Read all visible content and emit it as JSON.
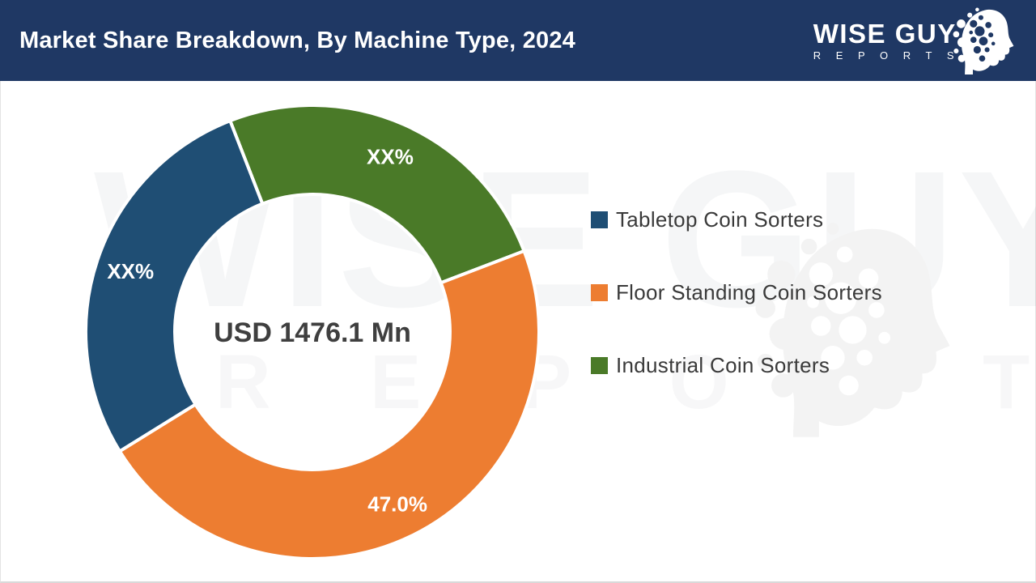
{
  "header": {
    "title": "Market Share Breakdown, By Machine Type, 2024",
    "logo": {
      "line1": "WISE GUY",
      "line2": "R E P O R T S"
    }
  },
  "watermark": {
    "line1": "WISE GUY",
    "line2": "R E P O R T S"
  },
  "chart_data": {
    "type": "pie",
    "subtype": "donut",
    "title": "Market Share Breakdown, By Machine Type, 2024",
    "center_label": "USD 1476.1 Mn",
    "start_angle_from_top_deg": -21.3,
    "clockwise": true,
    "inner_radius_ratio": 0.607,
    "slices": [
      {
        "name": "Industrial Coin Sorters",
        "pct": 25.1,
        "display": "XX%",
        "color": "#4A7A28"
      },
      {
        "name": "Floor Standing Coin Sorters",
        "pct": 47.0,
        "display": "47.0%",
        "color": "#ED7D31"
      },
      {
        "name": "Tabletop Coin Sorters",
        "pct": 27.9,
        "display": "XX%",
        "color": "#1F4E74"
      }
    ],
    "legend_position": "right",
    "slice_label_color": "#ffffff",
    "center_label_color": "#3F3F3F"
  },
  "legend": {
    "items": [
      {
        "label": "Tabletop Coin Sorters",
        "color": "#1F4E74"
      },
      {
        "label": "Floor Standing Coin Sorters",
        "color": "#ED7D31"
      },
      {
        "label": "Industrial Coin Sorters",
        "color": "#4A7A28"
      }
    ]
  },
  "colors": {
    "header_bg": "#1F3864",
    "content_bg": "#FFFFFF",
    "legend_text": "#3A3A3A",
    "watermark": "#F3F3F3"
  }
}
